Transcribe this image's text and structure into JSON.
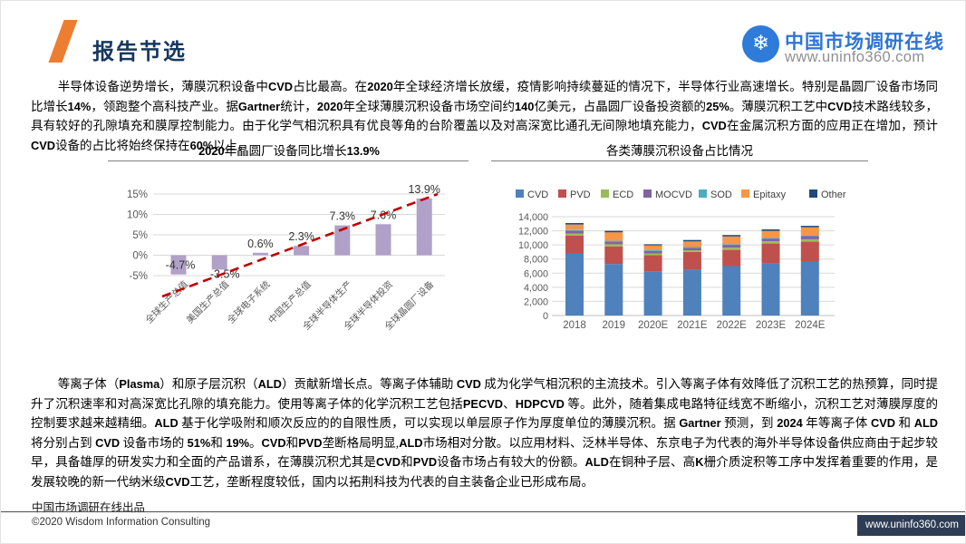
{
  "header": {
    "title": "报告节选",
    "site_name": "中国市场调研在线",
    "site_url": "www.uninfo360.com",
    "accent_orange": "#ED7D31",
    "title_navy": "#17375E",
    "logo_blue": "#2E7BD9",
    "logo_icon": "snowflake"
  },
  "paragraphs": {
    "p1": [
      {
        "t": "半导体设备逆势增长，薄膜沉积设备中"
      },
      {
        "t": "CVD",
        "b": true
      },
      {
        "t": "占比最高。在"
      },
      {
        "t": "2020",
        "b": true
      },
      {
        "t": "年全球经济增长放缓，疫情影响持续蔓延的情况下，半导体行业高速增长。特别是晶圆厂设备市场同比增长"
      },
      {
        "t": "14%",
        "b": true
      },
      {
        "t": "，领跑整个高科技产业。据"
      },
      {
        "t": "Gartner",
        "b": true
      },
      {
        "t": "统计，"
      },
      {
        "t": "2020",
        "b": true
      },
      {
        "t": "年全球薄膜沉积设备市场空间约"
      },
      {
        "t": "140",
        "b": true
      },
      {
        "t": "亿美元，占晶圆厂设备投资额的"
      },
      {
        "t": "25%",
        "b": true
      },
      {
        "t": "。薄膜沉积工艺中"
      },
      {
        "t": "CVD",
        "b": true
      },
      {
        "t": "技术路线较多，具有较好的孔隙填充和膜厚控制能力。由于化学气相沉积具有优良等角的台阶覆盖以及对高深宽比通孔无间隙地填充能力，"
      },
      {
        "t": "CVD",
        "b": true
      },
      {
        "t": "在金属沉积方面的应用正在增加，预计"
      },
      {
        "t": "CVD",
        "b": true
      },
      {
        "t": "设备的占比将始终保持在"
      },
      {
        "t": "60%",
        "b": true
      },
      {
        "t": "以上。"
      }
    ],
    "p2": [
      {
        "t": "等离子体（"
      },
      {
        "t": "Plasma",
        "b": true
      },
      {
        "t": "）和原子层沉积（"
      },
      {
        "t": "ALD",
        "b": true
      },
      {
        "t": "）贡献新增长点。等离子体辅助 "
      },
      {
        "t": "CVD",
        "b": true
      },
      {
        "t": " 成为化学气相沉积的主流技术。引入等离子体有效降低了沉积工艺的热预算，同时提升了沉积速率和对高深宽比孔隙的填充能力。使用等离子体的化学沉积工艺包括"
      },
      {
        "t": "PECVD",
        "b": true
      },
      {
        "t": "、"
      },
      {
        "t": "HDPCVD",
        "b": true
      },
      {
        "t": " 等。此外，随着集成电路特征线宽不断缩小，沉积工艺对薄膜厚度的控制要求越来越精细。"
      },
      {
        "t": "ALD",
        "b": true
      },
      {
        "t": " 基于化学吸附和顺次反应的的自限性质，可以实现以单层原子作为厚度单位的薄膜沉积。据 "
      },
      {
        "t": "Gartner",
        "b": true
      },
      {
        "t": " 预测，到 "
      },
      {
        "t": "2024",
        "b": true
      },
      {
        "t": " 年等离子体 "
      },
      {
        "t": "CVD",
        "b": true
      },
      {
        "t": " 和 "
      },
      {
        "t": "ALD",
        "b": true
      },
      {
        "t": " 将分别占到 "
      },
      {
        "t": "CVD",
        "b": true
      },
      {
        "t": " 设备市场的 "
      },
      {
        "t": "51%",
        "b": true
      },
      {
        "t": "和 "
      },
      {
        "t": "19%",
        "b": true
      },
      {
        "t": "。"
      },
      {
        "t": "CVD",
        "b": true
      },
      {
        "t": "和"
      },
      {
        "t": "PVD",
        "b": true
      },
      {
        "t": "垄断格局明显,"
      },
      {
        "t": "ALD",
        "b": true
      },
      {
        "t": "市场相对分散。以应用材料、泛林半导体、东京电子为代表的海外半导体设备供应商由于起步较早，具备雄厚的研发实力和全面的产品谱系，在薄膜沉积尤其是"
      },
      {
        "t": "CVD",
        "b": true
      },
      {
        "t": "和"
      },
      {
        "t": "PVD",
        "b": true
      },
      {
        "t": "设备市场占有较大的份额。"
      },
      {
        "t": "ALD",
        "b": true
      },
      {
        "t": "在铜种子层、高"
      },
      {
        "t": "K",
        "b": true
      },
      {
        "t": "栅介质淀积等工序中发挥着重要的作用，是发展较晚的新一代纳米级"
      },
      {
        "t": "CVD",
        "b": true
      },
      {
        "t": "工艺，垄断程度较低，国内以拓荆科技为代表的自主装备企业已形成布局。"
      }
    ]
  },
  "charts": {
    "left_title_segments": [
      {
        "t": "2020",
        "b": true
      },
      {
        "t": "年晶圆厂设备同比增长"
      },
      {
        "t": "13.9%",
        "b": true
      }
    ],
    "right_title": "各类薄膜沉积设备占比情况"
  },
  "chart_data": [
    {
      "type": "bar",
      "title": "2020年晶圆厂设备同比增长13.9%",
      "categories": [
        "全球生产总值",
        "美国生产总值",
        "全球电子系统",
        "中国生产总值",
        "全球半导体生产",
        "全球半导体投资",
        "全球晶圆厂设备"
      ],
      "values": [
        -4.7,
        -3.5,
        0.6,
        2.3,
        7.3,
        7.6,
        13.9
      ],
      "value_labels": [
        "-4.7%",
        "-3.5%",
        "0.6%",
        "2.3%",
        "7.3%",
        "7.6%",
        "13.9%"
      ],
      "bar_color": "#B1A0C7",
      "trendline": {
        "color": "#C00000",
        "style": "dashed"
      },
      "yticks": [
        15,
        10,
        5,
        0,
        -5
      ],
      "ytick_labels": [
        "15%",
        "10%",
        "5%",
        "0%",
        "-5%"
      ],
      "ylim": [
        -7.5,
        16
      ],
      "unit": "%",
      "grid": true,
      "xlabel": "",
      "ylabel": ""
    },
    {
      "type": "bar",
      "stacked": true,
      "title": "各类薄膜沉积设备占比情况",
      "categories": [
        "2018",
        "2019",
        "2020E",
        "2021E",
        "2022E",
        "2023E",
        "2024E"
      ],
      "series": [
        {
          "name": "CVD",
          "color": "#4F81BD",
          "values": [
            8800,
            7300,
            6200,
            6500,
            7000,
            7400,
            7700
          ]
        },
        {
          "name": "PVD",
          "color": "#C0504D",
          "values": [
            2500,
            2500,
            2350,
            2500,
            2300,
            2800,
            2800
          ]
        },
        {
          "name": "ECD",
          "color": "#9BBB59",
          "values": [
            300,
            300,
            250,
            250,
            300,
            300,
            300
          ]
        },
        {
          "name": "MOCVD",
          "color": "#8064A2",
          "values": [
            400,
            400,
            350,
            350,
            400,
            400,
            450
          ]
        },
        {
          "name": "SOD",
          "color": "#4BACC6",
          "values": [
            100,
            100,
            100,
            100,
            100,
            100,
            100
          ]
        },
        {
          "name": "Epitaxy",
          "color": "#F79646",
          "values": [
            800,
            1200,
            700,
            800,
            1100,
            1000,
            1150
          ]
        },
        {
          "name": "Other",
          "color": "#1F497D",
          "values": [
            200,
            200,
            150,
            200,
            200,
            200,
            200
          ]
        }
      ],
      "yticks": [
        0,
        2000,
        4000,
        6000,
        8000,
        10000,
        12000,
        14000
      ],
      "ytick_labels": [
        "0",
        "2,000",
        "4,000",
        "6,000",
        "8,000",
        "10,000",
        "12,000",
        "14,000"
      ],
      "ylim": [
        0,
        14000
      ],
      "legend_position": "top",
      "grid": true,
      "xlabel": "",
      "ylabel": ""
    }
  ],
  "footer": {
    "produced_by": "中国市场调研在线出品",
    "copyright": "©2020 Wisdom Information Consulting",
    "site_url": "www.uninfo360.com",
    "url_box_color": "#2E3D55"
  }
}
